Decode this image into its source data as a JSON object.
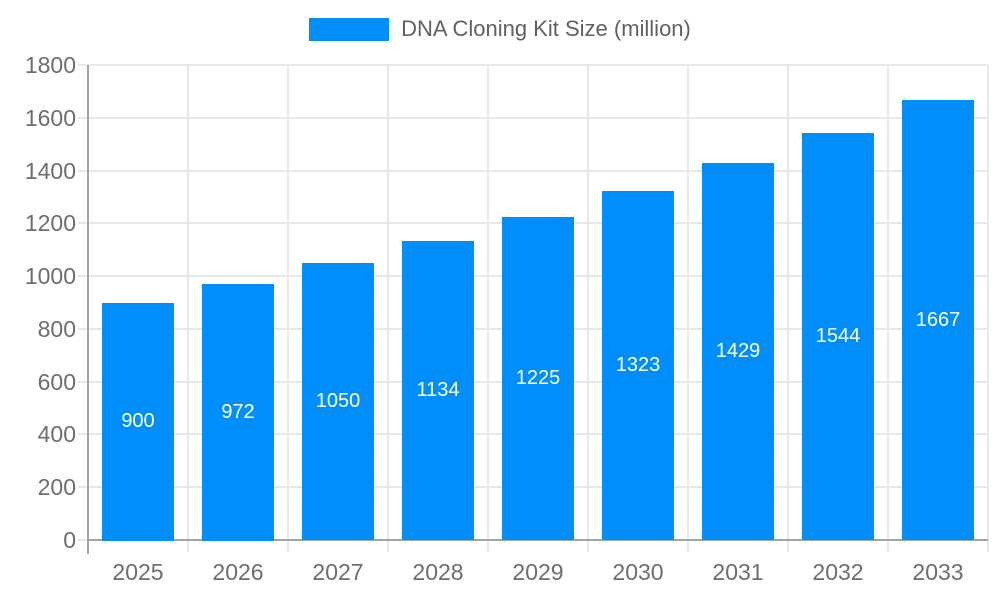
{
  "chart_data": {
    "type": "bar",
    "title": "DNA Cloning Kit Size (million)",
    "legend": [
      "DNA Cloning Kit Size (million)"
    ],
    "legend_position": "top",
    "categories": [
      "2025",
      "2026",
      "2027",
      "2028",
      "2029",
      "2030",
      "2031",
      "2032",
      "2033"
    ],
    "series": [
      {
        "name": "DNA Cloning Kit Size (million)",
        "values": [
          900,
          972,
          1050,
          1134,
          1225,
          1323,
          1429,
          1544,
          1667
        ]
      }
    ],
    "value_labels_shown": true,
    "value_label_position": "inside-center",
    "xlabel": "",
    "ylabel": "",
    "ylim": [
      0,
      1800
    ],
    "ytick_step": 200,
    "y_ticks": [
      0,
      200,
      400,
      600,
      800,
      1000,
      1200,
      1400,
      1600,
      1800
    ],
    "grid": true,
    "colors": {
      "bar": "#008FFA",
      "value_label": "#FFFFFF",
      "axis_label": "#6E6E6E",
      "legend_text": "#616161",
      "grid_line": "#E8E8E8",
      "axis_line": "#A5A5A5",
      "background": "#FFFFFF"
    }
  }
}
